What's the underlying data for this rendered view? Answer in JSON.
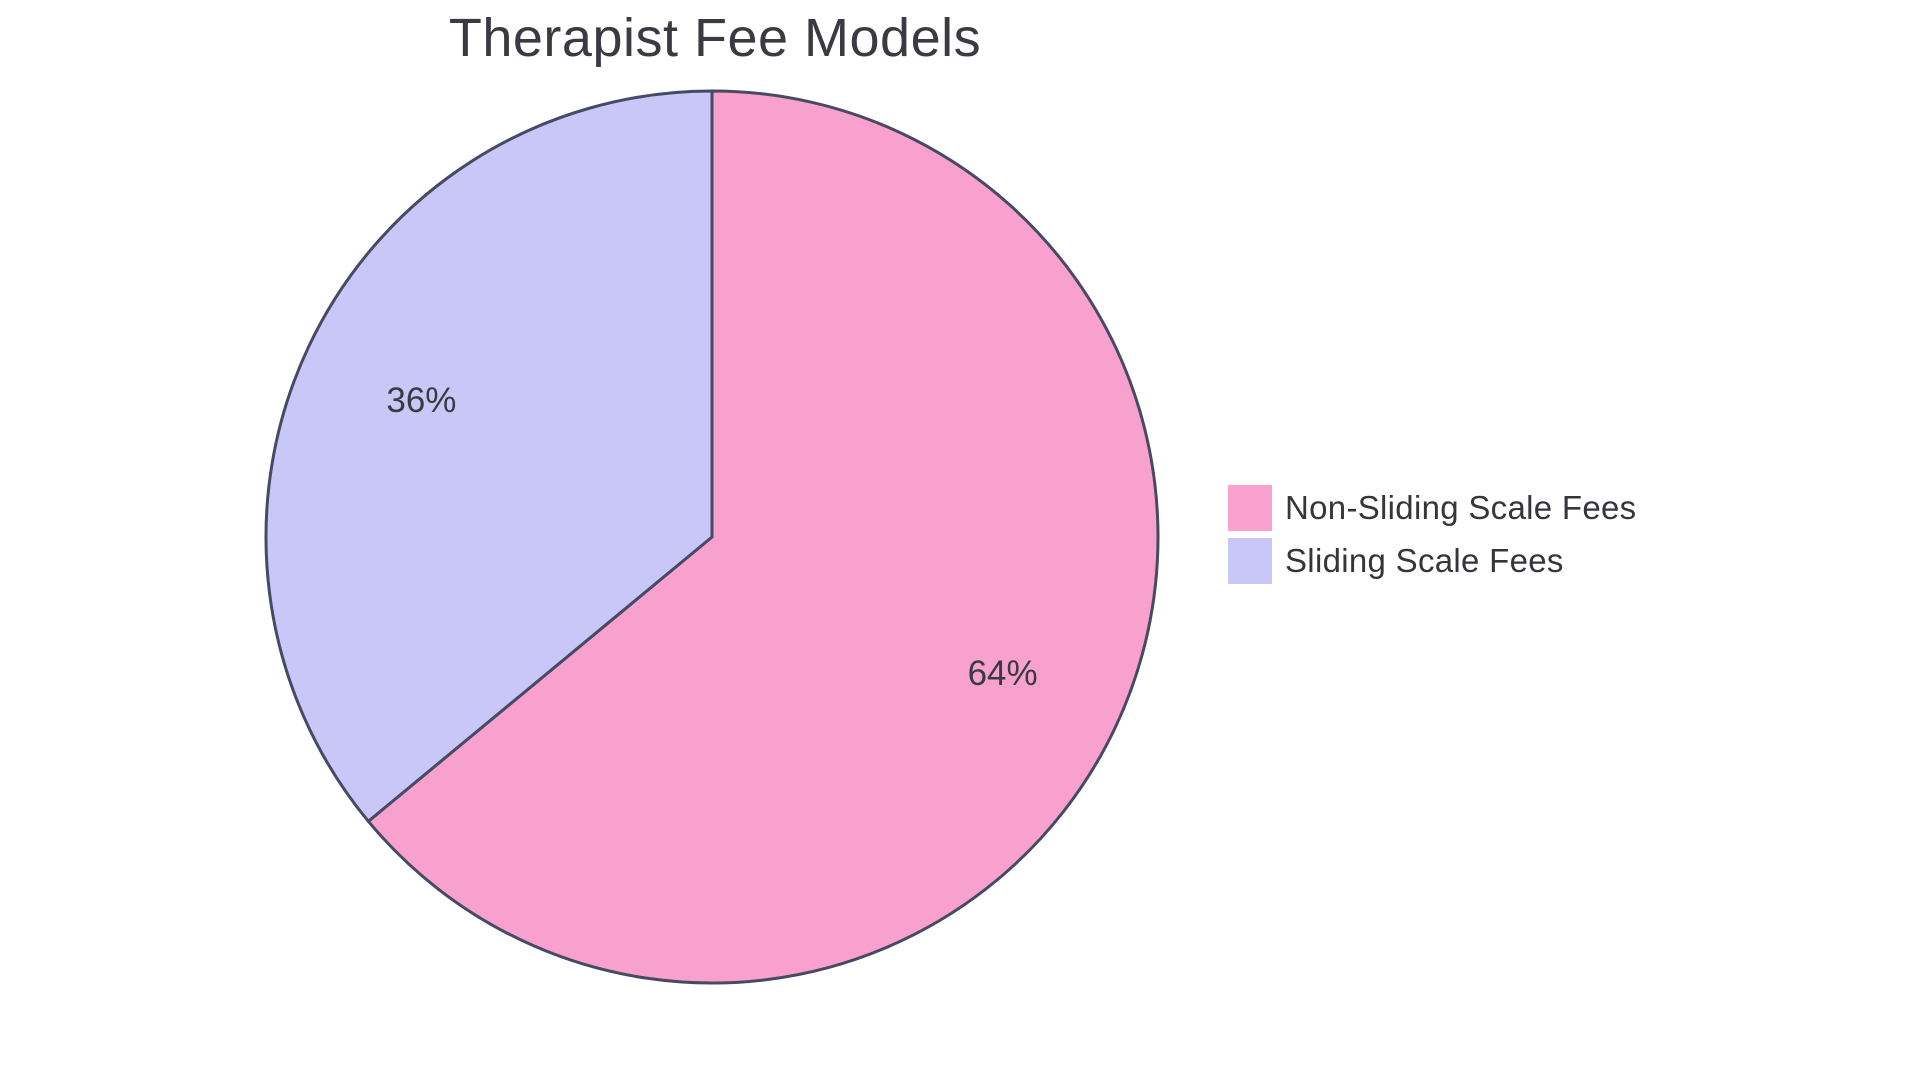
{
  "title": "Therapist Fee Models",
  "colors": {
    "background": "#FFFFFF",
    "slice_border": "#474A63",
    "title_text": "#3A3A42",
    "percent_label_text": "#3A3A42",
    "legend_text": "#35353C"
  },
  "chart_data": {
    "type": "pie",
    "title": "Therapist Fee Models",
    "start_angle": "12-oclock",
    "direction": "clockwise",
    "legend_position": "right-middle",
    "grid": false,
    "slices": [
      {
        "label": "Non-Sliding Scale Fees",
        "value": 64,
        "pct_label": "64%",
        "color": "#F9A1CE"
      },
      {
        "label": "Sliding Scale Fees",
        "value": 36,
        "pct_label": "36%",
        "color": "#C9C7F8"
      }
    ]
  }
}
